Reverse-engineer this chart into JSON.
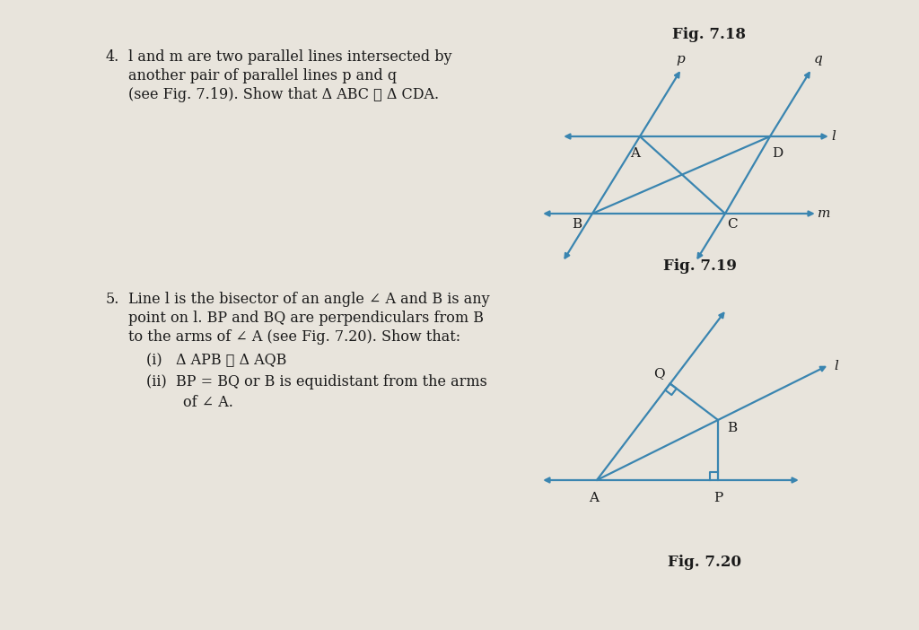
{
  "bg_color": "#e8e4dc",
  "text_color": "#1a1a1a",
  "blue_color": "#3a85b0",
  "fig_width": 10.24,
  "fig_height": 7.02,
  "fig718_title": "Fig. 7.18",
  "fig719_title": "Fig. 7.19",
  "fig720_title": "Fig. 7.20",
  "q4_num": "4.",
  "q4_l1": "l and m are two parallel lines intersected by",
  "q4_l2": "another pair of parallel lines p and q",
  "q4_l3": "(see Fig. 7.19). Show that Δ ABC ≅ Δ CDA.",
  "q5_num": "5.",
  "q5_l1": "Line l is the bisector of an angle ∠ A and B is any",
  "q5_l2": "point on l. BP and BQ are perpendiculars from B",
  "q5_l3": "to the arms of ∠ A (see Fig. 7.20). Show that:",
  "q5_i": "(i)   Δ APB ≅ Δ AQB",
  "q5_ii1": "(ii)  BP = BQ or B is equidistant from the arms",
  "q5_ii2": "        of ∠ A."
}
